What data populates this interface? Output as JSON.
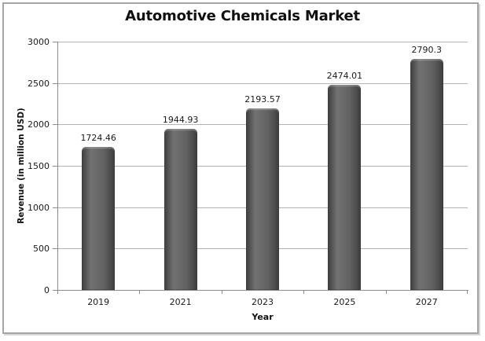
{
  "chart_data": {
    "type": "bar",
    "title": "Automotive Chemicals Market",
    "xlabel": "Year",
    "ylabel": "Revenue (in million USD)",
    "categories": [
      "2019",
      "2021",
      "2023",
      "2025",
      "2027"
    ],
    "values": [
      1724.46,
      1944.93,
      2193.57,
      2474.01,
      2790.3
    ],
    "value_labels": [
      "1724.46",
      "1944.93",
      "2193.57",
      "2474.01",
      "2790.3"
    ],
    "ylim": [
      0,
      3000
    ],
    "yticks": [
      0,
      500,
      1000,
      1500,
      2000,
      2500,
      3000
    ],
    "ytick_labels": [
      "0",
      "500",
      "1000",
      "1500",
      "2000",
      "2500",
      "3000"
    ],
    "grid": true,
    "legend": false,
    "colors": {
      "bar_edge_dark": "#3e3e3e",
      "bar_highlight": "#727272",
      "bar_body": "#616161",
      "gridline": "#b4b4b4",
      "axis": "#8a8a8a",
      "text": "#1a1a1a",
      "frame_border": "#a5a5a5",
      "frame_shadow": "#d8d8d8",
      "background": "#ffffff"
    }
  }
}
